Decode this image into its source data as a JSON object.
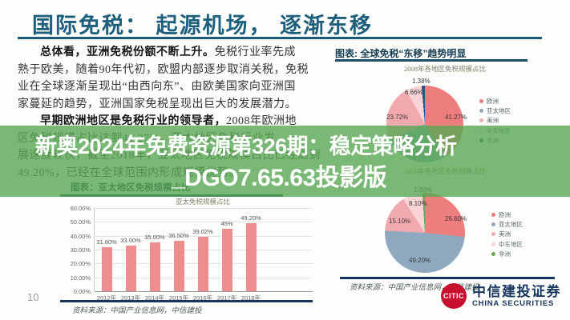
{
  "page": {
    "number": "10"
  },
  "title": {
    "text": "国际免税： 起源机场， 逐渐东移"
  },
  "watermark": {
    "line1": "新奥2024年免费资源第326期：稳定策略分析",
    "line2": "_DGO7.65.63投影版"
  },
  "left_text": {
    "lines": [
      {
        "indent": true,
        "bold": "总体看，亚洲免税份额不断上升。",
        "rest": "免税行业率先成"
      },
      {
        "indent": false,
        "bold": "",
        "rest": "熟于欧美，随着90年代初，欧盟内部逐步取消关税，免税"
      },
      {
        "indent": false,
        "bold": "",
        "rest": "业在全球逐渐呈现出“由西向东”、由欧美国家向亚洲国"
      },
      {
        "indent": false,
        "bold": "",
        "rest": "家蔓延的趋势，亚洲国家免税呈现出巨大的发展潜力。"
      },
      {
        "indent": true,
        "bold": "早期欧洲地区是免税行业的领导者，",
        "rest": "2008年欧洲地"
      },
      {
        "indent": false,
        "bold": "",
        "rest": "区免税规模占比达到41.27%。亚太地区免税行业发"
      },
      {
        "indent": false,
        "bold": "",
        "rest": "展速度较快，截至2018年，亚太地区免税规模占比已经达到"
      },
      {
        "indent": false,
        "bold": "",
        "rest": "49.20%，已经在全球范围内形成规模优势。"
      }
    ]
  },
  "right_panel": {
    "header": "图表: 全球免税“东移”趋势明显"
  },
  "left_chart": {
    "header": "图表：亚太地区免税规模占比"
  },
  "sources": {
    "left": "资料来源：中国产业信息网，中信建投",
    "right": "资料来源：中国产业信息网，中信建投"
  },
  "logo": {
    "name_cn": "中信建投证券",
    "name_en": "CHINA SECURITIES",
    "mark": "CITIC",
    "color": "#c8102e"
  },
  "colors": {
    "accent_teal": "#1b5a78",
    "navy_rule": "#17365d",
    "bar": "#ed8d8d",
    "watermark_green": "#58a852"
  },
  "chart_data": [
    {
      "type": "bar",
      "title": "亚太免税规模占比",
      "categories": [
        "2012年",
        "2013年",
        "2014年",
        "2015年",
        "2016年",
        "2017年",
        "2018年"
      ],
      "values": [
        31.6,
        33.0,
        35.0,
        36.5,
        39.02,
        45,
        49.2
      ],
      "labels": [
        "31.60%",
        "33.00%",
        "35.00%",
        "36.50%",
        "39.02%",
        "45%",
        "49.20%"
      ],
      "xlabel": "",
      "ylabel": "",
      "ylim": [
        0,
        60
      ],
      "yticks": [
        "60.00%",
        "50.00%",
        "40.00%",
        "30.00%",
        "20.00%",
        "10.00%",
        "0.00%"
      ],
      "grid": true,
      "legend": "none",
      "bar_color": "#ed8d8d"
    },
    {
      "type": "pie",
      "title": "2008年各地区免税规模占比",
      "slices": [
        {
          "label": "欧洲",
          "value": 41.27,
          "text": "41.27%",
          "color": "#ee7d7d"
        },
        {
          "label": "亚太地区",
          "value": 26.97,
          "text": "",
          "color": "#8ea9bf"
        },
        {
          "label": "美洲",
          "value": 23.72,
          "text": "23.72%",
          "color": "#f2a9ad"
        },
        {
          "label": "中东地区",
          "value": 6.66,
          "text": "6.66%",
          "color": "#f9d3d6"
        },
        {
          "label": "非洲",
          "value": 1.38,
          "text": "1.38%",
          "color": "#2f4e8f"
        }
      ],
      "legend_position": "right"
    },
    {
      "type": "pie",
      "title": "2018年各地区免税规模占比",
      "slices": [
        {
          "label": "欧洲",
          "value": 26.6,
          "text": "26.60%",
          "color": "#ee7d7d"
        },
        {
          "label": "亚太地区",
          "value": 49.2,
          "text": "49.20%",
          "color": "#8ea9bf"
        },
        {
          "label": "美洲",
          "value": 15.1,
          "text": "15.10%",
          "color": "#f2a9ad"
        },
        {
          "label": "中东地区",
          "value": 8.1,
          "text": "8.10%",
          "color": "#f9d3d6"
        },
        {
          "label": "非洲",
          "value": 1.0,
          "text": "1.00%",
          "color": "#6fa352"
        }
      ],
      "legend_position": "right"
    }
  ]
}
